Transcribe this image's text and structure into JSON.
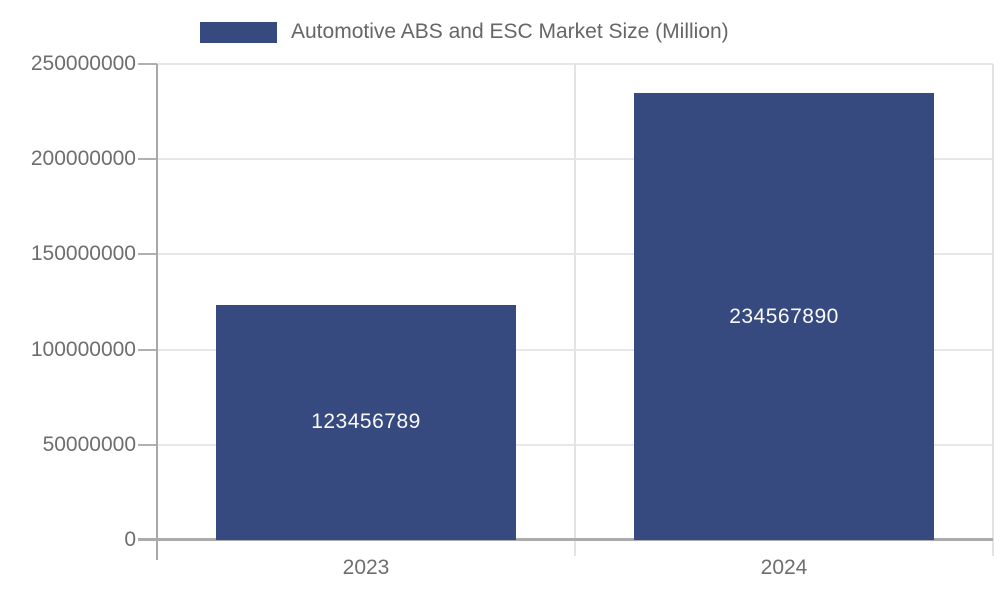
{
  "legend": {
    "label": "Automotive ABS and ESC Market Size (Million)",
    "swatch_color": "#364A80"
  },
  "chart_data": {
    "type": "bar",
    "title": "Automotive ABS and ESC Market Size (Million)",
    "categories": [
      "2023",
      "2024"
    ],
    "series": [
      {
        "name": "Automotive ABS and ESC Market Size (Million)",
        "values": [
          123456789,
          234567890
        ]
      }
    ],
    "data_labels": [
      "123456789",
      "234567890"
    ],
    "xlabel": "",
    "ylabel": "",
    "ylim": [
      0,
      250000000
    ],
    "ytick_interval": 50000000,
    "yticks": [
      0,
      50000000,
      100000000,
      150000000,
      200000000,
      250000000
    ],
    "grid": true,
    "legend_position": "top",
    "colors": {
      "bar": "#364A80",
      "bar_label_text": "#fafafa",
      "axis_text": "#6e6e6e",
      "legend_text": "#666666",
      "gridline": "#e7e7e7",
      "category_divider": "#e3e3e3",
      "axis_line": "#a8a8a8"
    }
  }
}
